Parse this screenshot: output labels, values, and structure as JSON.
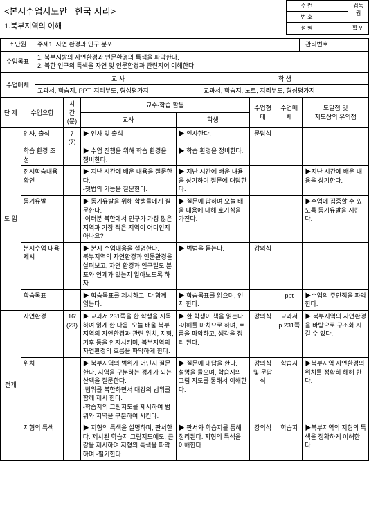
{
  "header": {
    "title": "<본시수업지도안– 한국 지리>",
    "subtitle": "1.북부지역의 이해",
    "topGrid": {
      "r1c1": "수 런",
      "r1c2": "",
      "r1c3": "검독권",
      "r2c1": "번 호",
      "r2c2": "",
      "r2c3": "확 인",
      "r3c1": "성 명",
      "r3c2": ""
    }
  },
  "unit": {
    "label": "소단원",
    "topic": "주제1. 자연 환경과 인구 분포",
    "mgLabel": "관리번호",
    "mgVal": ""
  },
  "objectives": {
    "label": "수업목표",
    "line1": "1. 북부지방의 자연환경과 인문환경의 특색을 파악한다.",
    "line2": "2. 북한 인구의 특색을 자연 및 인문환경과 관련지어 이해한다."
  },
  "media": {
    "label": "수업매체",
    "teacherLabel": "교 사",
    "teacherVal": "교과서, 학습지, PPT, 지리부도, 형성평가지",
    "studentLabel": "학 생",
    "studentVal": "교과서, 학습지, 노트, 지리부도, 형성평가지"
  },
  "cols": {
    "stage": "단 계",
    "gist": "수업요항",
    "time": "시\n간\n(분)",
    "activity": "교수-학습 활동",
    "teacher": "교사",
    "student": "학생",
    "form": "수업형태",
    "mediaCol": "수업매체",
    "points": "도달점 및\n지도상의 유의점"
  },
  "rows": [
    {
      "stage": "도 입",
      "items": [
        {
          "gist": "인사, 출석\n\n학습 환경 조성",
          "time": "7\n(7)",
          "teacher": "▶ 인사 및 출석\n\n▶ 수업 진행을 위해 학습 환경을 정비한다.",
          "student": "▶ 인사한다.\n\n▶ 학습 환경을 정비한다.",
          "form": "문답식",
          "media": "",
          "points": ""
        },
        {
          "gist": "전시학습내용확인",
          "time": "",
          "teacher": "▶ 지난 시간에 배운 내용을 질문한다.\n-챗법의 기능을 질문한다.",
          "student": "▶ 지난 시간에 배운 내용을 상기하며 질문에 대답한다.",
          "form": "",
          "media": "",
          "points": "▶지난 시간에 배운 내용을 상기한다."
        },
        {
          "gist": "동기유발",
          "time": "",
          "teacher": "▶ 동기유발을 위해 학생들에게 질문한다.\n-여러분 북한에서 인구가 가장 많은 지역과 가장 적은 지역이 어디인지 아나요?",
          "student": "▶ 질문에 답하며 오늘 배울 내용에 대해 호기심을 가진다.",
          "form": "",
          "media": "",
          "points": "▶수업에 집중할 수 있도록 동기유발을 시킨다."
        },
        {
          "gist": "본시수업 내용제시",
          "time": "",
          "teacher": "▶ 본시 수업내용을 설명한다.\n북부지역의 자연환경과 인문환경을 살펴보고, 자연 환경과 인구밀도 분포와 연계가 있는지 알아보도록 하자.",
          "student": "▶ 범법을 듣는다.",
          "form": "강의식",
          "media": "",
          "points": ""
        },
        {
          "gist": "학습목표",
          "time": "",
          "teacher": "▶ 학습목표를 제시하고, 다 함께 읽는다.",
          "student": "▶ 학습목표를 읽으며, 인지 한다.",
          "form": "",
          "media": "ppt",
          "points": "▶수업의 주안점을 파악한다."
        }
      ]
    },
    {
      "stage": "전개",
      "items": [
        {
          "gist": "자연환경",
          "time": "16'\n(23)",
          "teacher": "▶ 교과서 231쪽을 한 학생을 지목하여 읽게 한 다음, 오늘 배울 북부지역의 자연환경과 관련 위치, 지형, 기후 등을 인지시키며, 북부지역의 자연환경의 흐름을 파악하게 한다.",
          "student": "▶ 한 학생이 책을 읽는다.\n-이해를 마치므로 하며, 흐름을 파악하고, 생각을 정리 된다.",
          "form": "강의식",
          "media": "교과서\np.231쪽",
          "points": "▶ 북부지역의 자연환경을 바탕으로 구조화 시킬 수 있다."
        },
        {
          "gist": "위치",
          "time": "",
          "teacher": "▶ 북부지역의 범위가 어딘지 질문한다. 지역을 구분하는 경계가 되는 산맥을 질문한다.\n-범위를 복한하면서 대강의 범위를 함께 제시 한다.\n-학습지의 그림지도를 제시하여 범위와 지역을 구분하여 시킨다.",
          "student": "▶ 질문에 대답을 한다.\n설명을 들으며, 학습지의 그림 지도를 통해서 이해한다.",
          "form": "강의식 및 문답식",
          "media": "학습지",
          "points": "▶북부지역 자연환경의 위치를 정확히 해해 한다."
        },
        {
          "gist": "지형의 특색",
          "time": "",
          "teacher": "▶ 지형의 특색을 설명하며, 판서한다. 제시된 학습지 그림지도에도, 큰 강을 제시하며 지형의 특색을 파악하며 -필기한다.",
          "student": "▶ 판서와 학습지를 통해 정리된다. 지형의 특색을 이해한다.",
          "form": "강의식",
          "media": "학습지",
          "points": "▶북부지역의 지형의 특색을 정확하게 이해한다."
        }
      ]
    }
  ]
}
